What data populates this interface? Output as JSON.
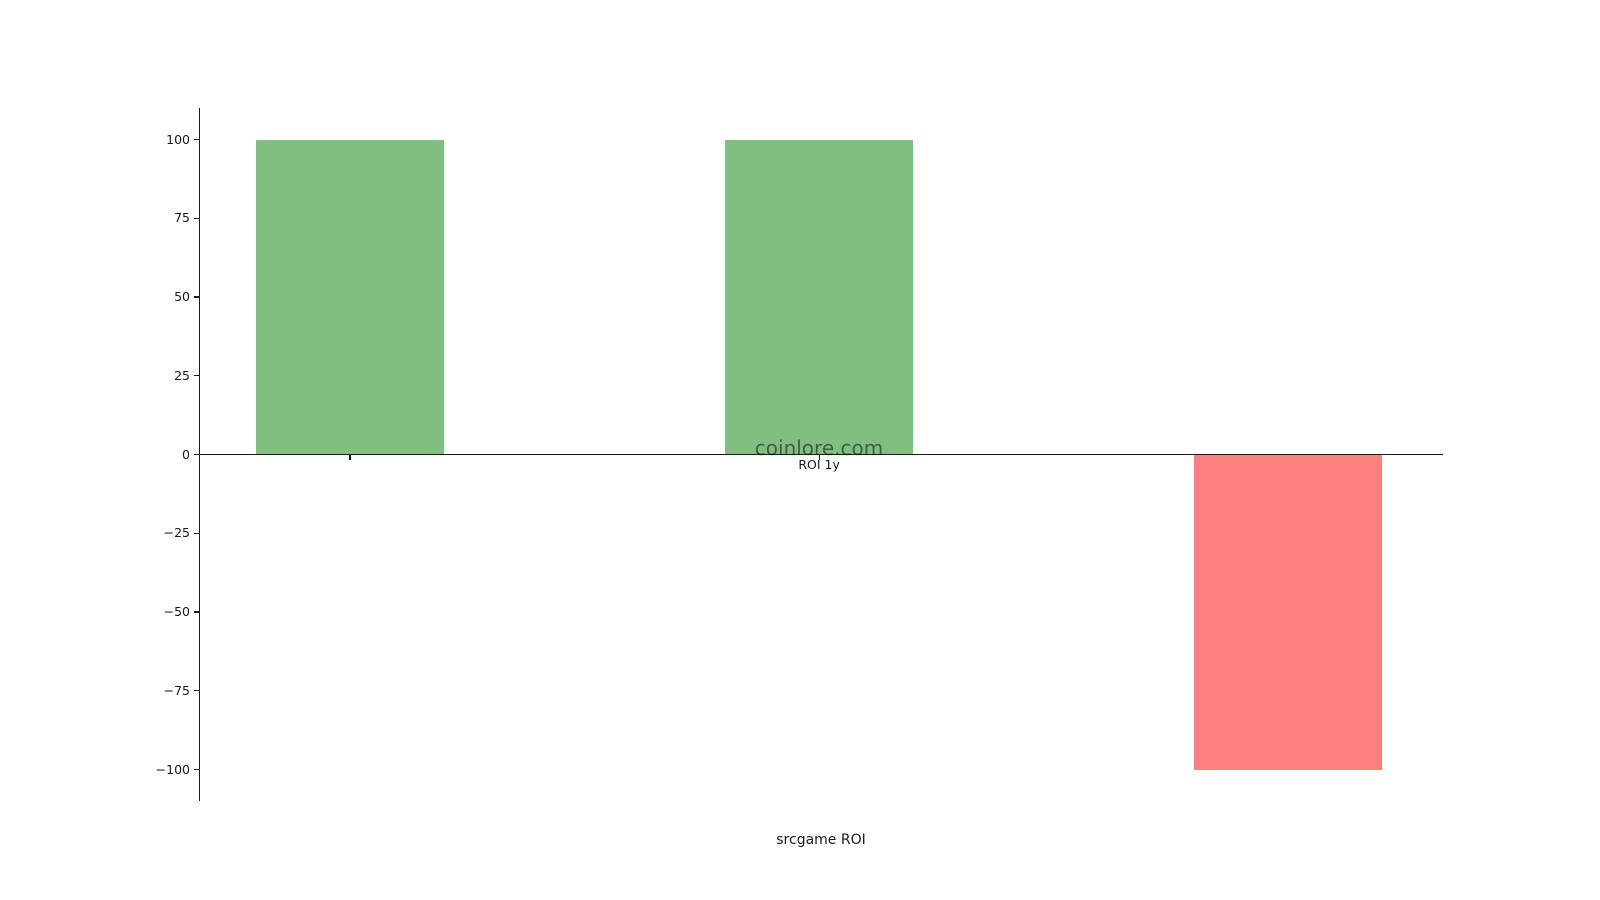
{
  "chart_data": {
    "type": "bar",
    "title": "",
    "xlabel": "srcgame ROI",
    "ylabel": "",
    "categories": [
      "",
      "ROI 1y",
      ""
    ],
    "values": [
      100,
      100,
      -100
    ],
    "bar_colors": [
      "#80bf80",
      "#80bf80",
      "#ff8080"
    ],
    "positive_color": "#80bf80",
    "negative_color": "#ff8080",
    "ylim": [
      -110,
      110
    ],
    "xlim": [
      -0.32,
      2.33
    ],
    "bar_width": 0.4,
    "grid": false,
    "yticks": [
      {
        "value": 100,
        "label": "100"
      },
      {
        "value": 75,
        "label": "75"
      },
      {
        "value": 50,
        "label": "50"
      },
      {
        "value": 25,
        "label": "25"
      },
      {
        "value": 0,
        "label": "0"
      },
      {
        "value": -25,
        "label": "−25"
      },
      {
        "value": -50,
        "label": "−50"
      },
      {
        "value": -75,
        "label": "−75"
      },
      {
        "value": -100,
        "label": "−100"
      }
    ]
  },
  "watermark": {
    "text": "coinlore.com",
    "color": "rgba(0,0,0,0.5)"
  }
}
